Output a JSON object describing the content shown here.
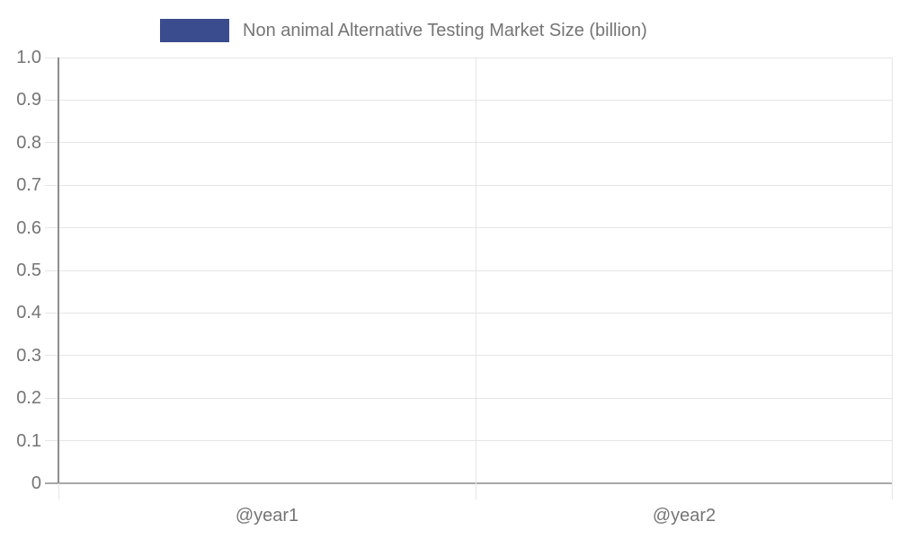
{
  "legend": {
    "label": "Non animal Alternative Testing Market Size (billion)"
  },
  "chart_data": {
    "type": "bar",
    "title": "Non animal Alternative Testing Market Size (billion)",
    "categories": [
      "@year1",
      "@year2"
    ],
    "series": [
      {
        "name": "Non animal Alternative Testing Market Size (billion)",
        "color": "#3a4b8e",
        "values": [
          0,
          0
        ]
      }
    ],
    "xlabel": "",
    "ylabel": "",
    "ylim": [
      0,
      1.0
    ],
    "ytick_labels": [
      "1.0",
      "0.9",
      "0.8",
      "0.7",
      "0.6",
      "0.5",
      "0.4",
      "0.3",
      "0.2",
      "0.1",
      "0"
    ],
    "grid": true,
    "legend_position": "top"
  },
  "colors": {
    "series": "#3a4b8e",
    "gridline": "#e6e6e6",
    "axis_line": "#8e8e8e",
    "baseline": "#a9a9a9",
    "label_text": "#757575"
  }
}
